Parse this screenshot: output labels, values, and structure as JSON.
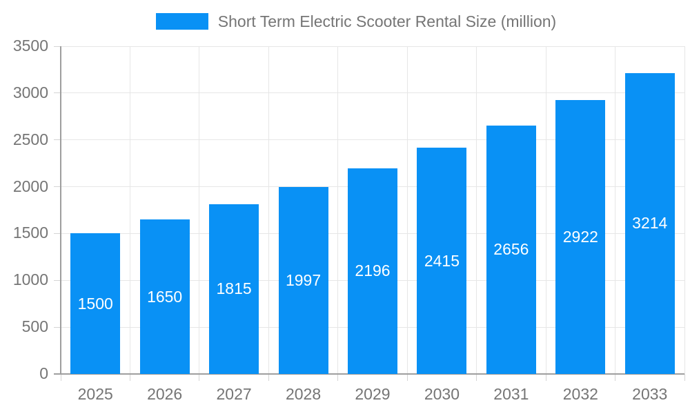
{
  "chart_data": {
    "type": "bar",
    "title": "Short Term Electric Scooter Rental Size (million)",
    "categories": [
      "2025",
      "2026",
      "2027",
      "2028",
      "2029",
      "2030",
      "2031",
      "2032",
      "2033"
    ],
    "values": [
      1500,
      1650,
      1815,
      1997,
      2196,
      2415,
      2656,
      2922,
      3214
    ],
    "series_name": "Short Term Electric Scooter Rental Size (million)",
    "xlabel": "",
    "ylabel": "",
    "ylim": [
      0,
      3500
    ],
    "yticks": [
      0,
      500,
      1000,
      1500,
      2000,
      2500,
      3000,
      3500
    ],
    "grid": true,
    "legend_position": "top-center",
    "value_labels": "inside-center",
    "colors": {
      "bar": "#0991f5",
      "value_label": "#ffffff",
      "axis": "#9e9e9e",
      "gridline": "#e6e6e6",
      "tick_mark": "#d4d4d4",
      "tick_label": "#757575",
      "background": "#ffffff"
    }
  }
}
